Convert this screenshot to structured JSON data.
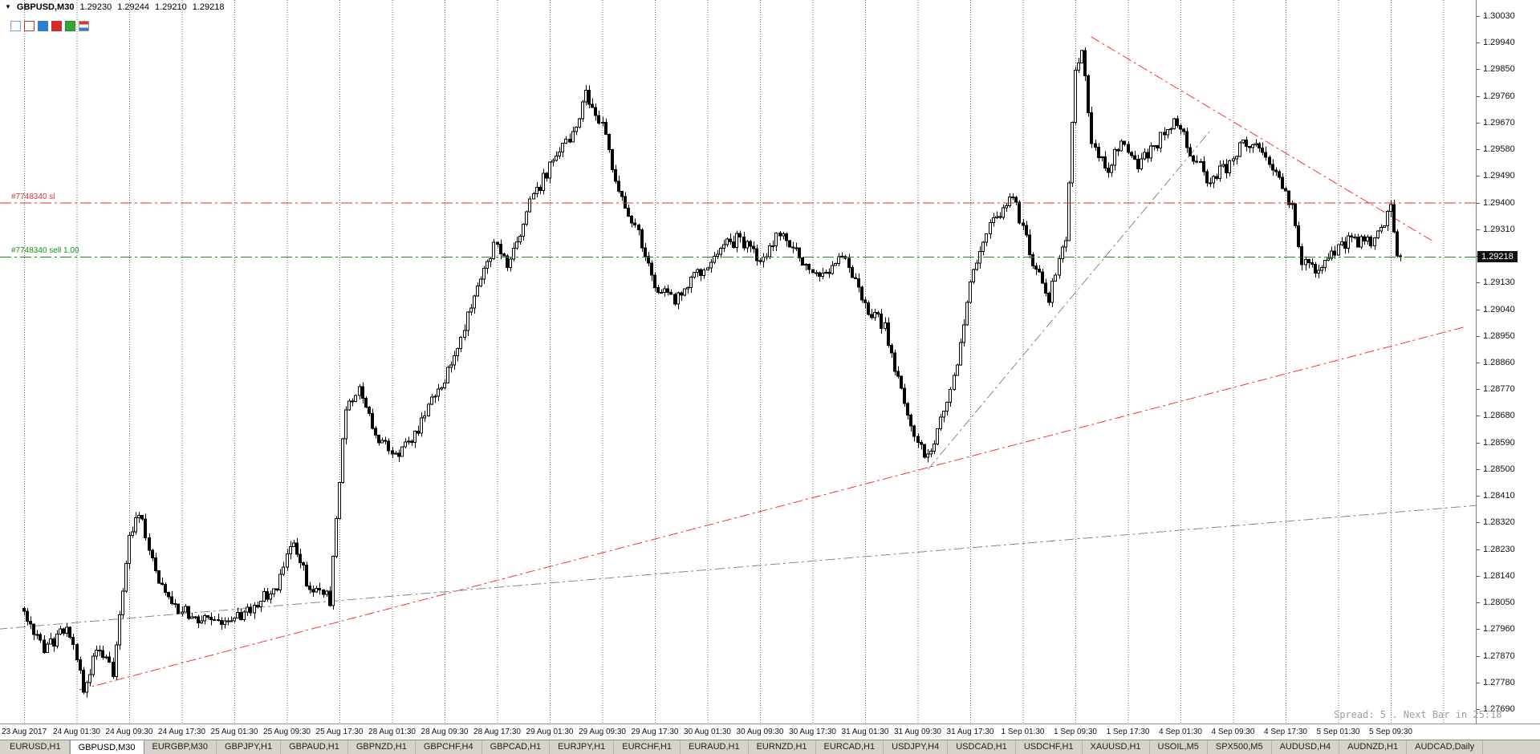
{
  "header": {
    "dropdown_marker": "▼",
    "symbol": "GBPUSD,M30",
    "open": "1.29230",
    "high": "1.29244",
    "low": "1.29210",
    "close": "1.29218"
  },
  "toolbar": {
    "icons": [
      {
        "name": "object-white-square-icon",
        "type": "solid",
        "fill": "#ffffff",
        "border": "#6fa8dc"
      },
      {
        "name": "object-red-outline-square-icon",
        "type": "solid",
        "fill": "#ffffff",
        "border": "#cc3333"
      },
      {
        "name": "object-blue-square-icon",
        "type": "solid",
        "fill": "#2d7fd3",
        "border": "#2d7fd3"
      },
      {
        "name": "object-red-square-icon",
        "type": "solid",
        "fill": "#d22d2d",
        "border": "#d22d2d"
      },
      {
        "name": "object-green-square-icon",
        "type": "solid",
        "fill": "#33a833",
        "border": "#2a8a2a"
      },
      {
        "name": "object-striped-square-icon",
        "type": "striped",
        "stripes": [
          "#e03030",
          "#ffffff",
          "#2d7fd3"
        ],
        "border": "#999999"
      }
    ]
  },
  "order_lines": [
    {
      "label": "#7748340 sl",
      "price": 1.294,
      "color": "#e03030",
      "dash": "14 4 3 4"
    },
    {
      "label": "#7748340 sell 1.00",
      "price": 1.29218,
      "color": "#159315",
      "dash": "14 4 3 4"
    }
  ],
  "price_axis": {
    "labels": [
      "1.30030",
      "1.29940",
      "1.29850",
      "1.29760",
      "1.29670",
      "1.29580",
      "1.29490",
      "1.29400",
      "1.29310",
      "1.29220",
      "1.29130",
      "1.29040",
      "1.28950",
      "1.28860",
      "1.28770",
      "1.28680",
      "1.28590",
      "1.28500",
      "1.28410",
      "1.28320",
      "1.28230",
      "1.28140",
      "1.28050",
      "1.27960",
      "1.27870",
      "1.27780",
      "1.27690"
    ],
    "current_price": "1.29218"
  },
  "time_axis": {
    "labels": [
      "23 Aug 2017",
      "24 Aug 01:30",
      "24 Aug 09:30",
      "24 Aug 17:30",
      "25 Aug 01:30",
      "25 Aug 09:30",
      "25 Aug 17:30",
      "28 Aug 01:30",
      "28 Aug 09:30",
      "28 Aug 17:30",
      "29 Aug 01:30",
      "29 Aug 09:30",
      "29 Aug 17:30",
      "30 Aug 01:30",
      "30 Aug 09:30",
      "30 Aug 17:30",
      "31 Aug 01:30",
      "31 Aug 09:30",
      "31 Aug 17:30",
      "1 Sep 01:30",
      "1 Sep 09:30",
      "1 Sep 17:30",
      "4 Sep 01:30",
      "4 Sep 09:30",
      "4 Sep 17:30",
      "5 Sep 01:30",
      "5 Sep 09:30"
    ]
  },
  "status": {
    "spread_text": "Spread: 5 . Next Bar in 25:18"
  },
  "tabs": {
    "active_index": 1,
    "items": [
      "EURUSD,H1",
      "GBPUSD,M30",
      "EURGBP,M30",
      "GBPJPY,H1",
      "GBPAUD,H1",
      "GBPNZD,H1",
      "GBPCHF,H4",
      "GBPCAD,H1",
      "EURJPY,H1",
      "EURCHF,H1",
      "EURAUD,H1",
      "EURNZD,H1",
      "EURCAD,H1",
      "USDJPY,H4",
      "USDCAD,H1",
      "USDCHF,H1",
      "XAUUSD,H1",
      "USOIL,M5",
      "SPX500,M5",
      "AUDUSD,H4",
      "AUDNZD,H1",
      "AUDCAD,Daily"
    ]
  },
  "chart_data": {
    "type": "candlestick",
    "symbol": "GBPUSD",
    "timeframe": "M30",
    "title": "GBPUSD,M30",
    "price_range": {
      "axis_min": 1.2769,
      "axis_max": 1.3003,
      "tick_step": 0.0009
    },
    "bar_count": 420,
    "bars_per_gridline": 16,
    "gridline_count": 28,
    "seed": 20170905,
    "last_close": 1.29218,
    "current_ohlc": {
      "open": 1.2923,
      "high": 1.29244,
      "low": 1.2921,
      "close": 1.29218
    },
    "volatility": {
      "close_jitter": 0.00022,
      "wick_extension": 0.0002
    },
    "path_anchors": [
      [
        0,
        1.2803
      ],
      [
        6,
        1.2789
      ],
      [
        13,
        1.2797
      ],
      [
        18,
        1.2776
      ],
      [
        22,
        1.2788
      ],
      [
        27,
        1.2782
      ],
      [
        32,
        1.2828
      ],
      [
        35,
        1.2836
      ],
      [
        40,
        1.2815
      ],
      [
        45,
        1.2805
      ],
      [
        51,
        1.28
      ],
      [
        61,
        1.2797
      ],
      [
        69,
        1.2802
      ],
      [
        77,
        1.2811
      ],
      [
        82,
        1.2826
      ],
      [
        86,
        1.2812
      ],
      [
        93,
        1.2806
      ],
      [
        96,
        1.2845
      ],
      [
        98,
        1.2872
      ],
      [
        102,
        1.2878
      ],
      [
        107,
        1.2862
      ],
      [
        112,
        1.2855
      ],
      [
        117,
        1.2858
      ],
      [
        123,
        1.287
      ],
      [
        130,
        1.2885
      ],
      [
        136,
        1.2905
      ],
      [
        144,
        1.2928
      ],
      [
        147,
        1.2918
      ],
      [
        154,
        1.294
      ],
      [
        160,
        1.2952
      ],
      [
        166,
        1.2962
      ],
      [
        171,
        1.2976
      ],
      [
        176,
        1.2965
      ],
      [
        181,
        1.2945
      ],
      [
        187,
        1.293
      ],
      [
        192,
        1.2912
      ],
      [
        198,
        1.2906
      ],
      [
        205,
        1.2916
      ],
      [
        211,
        1.2924
      ],
      [
        218,
        1.2928
      ],
      [
        224,
        1.292
      ],
      [
        230,
        1.293
      ],
      [
        237,
        1.292
      ],
      [
        243,
        1.2916
      ],
      [
        250,
        1.2921
      ],
      [
        256,
        1.2905
      ],
      [
        262,
        1.2898
      ],
      [
        269,
        1.2868
      ],
      [
        275,
        1.2853
      ],
      [
        282,
        1.2875
      ],
      [
        288,
        1.2912
      ],
      [
        294,
        1.2932
      ],
      [
        301,
        1.2942
      ],
      [
        307,
        1.292
      ],
      [
        312,
        1.2908
      ],
      [
        317,
        1.2928
      ],
      [
        320,
        1.2985
      ],
      [
        322,
        1.2992
      ],
      [
        325,
        1.2962
      ],
      [
        330,
        1.295
      ],
      [
        334,
        1.2962
      ],
      [
        339,
        1.2952
      ],
      [
        346,
        1.2962
      ],
      [
        350,
        1.2968
      ],
      [
        355,
        1.2958
      ],
      [
        360,
        1.2948
      ],
      [
        366,
        1.2952
      ],
      [
        371,
        1.296
      ],
      [
        378,
        1.2956
      ],
      [
        382,
        1.2948
      ],
      [
        386,
        1.2938
      ],
      [
        389,
        1.292
      ],
      [
        394,
        1.2916
      ],
      [
        398,
        1.2922
      ],
      [
        403,
        1.2928
      ],
      [
        408,
        1.2926
      ],
      [
        413,
        1.293
      ],
      [
        416,
        1.2938
      ],
      [
        418,
        1.292
      ],
      [
        419,
        1.29218
      ]
    ],
    "trend_lines": [
      {
        "name": "descending-resistance",
        "color": "#ff3434",
        "dash": "12 4 3 4",
        "from": [
          20.3,
          1.2996
        ],
        "to": [
          26.8,
          1.2927
        ]
      },
      {
        "name": "ascending-support",
        "color": "#ff3434",
        "dash": "12 4 3 4",
        "from": [
          1.05,
          1.27755
        ],
        "to": [
          27.4,
          1.2898
        ]
      },
      {
        "name": "steep-gray-trend",
        "color": "#8a8a8a",
        "dash": "12 4 3 4",
        "from": [
          17.2,
          1.285
        ],
        "to": [
          22.6,
          1.2965
        ]
      },
      {
        "name": "shallow-gray-trend",
        "color": "#8a8a8a",
        "dash": "12 4 3 4",
        "from": [
          -0.5,
          1.2796
        ],
        "to": [
          27.8,
          1.2838
        ]
      }
    ]
  }
}
